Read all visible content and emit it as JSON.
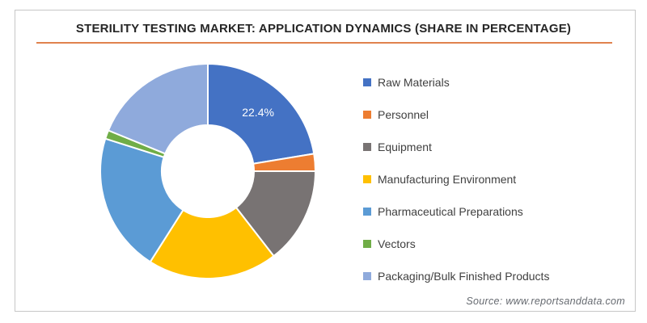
{
  "header": {
    "divider_color": "#e0824e",
    "frame_border_color": "#c7c7c7"
  },
  "footer": {
    "source": "Source: www.reportsanddata.com"
  },
  "chart_data": {
    "type": "pie",
    "subtype": "donut",
    "title": "STERILITY TESTING MARKET: APPLICATION DYNAMICS (SHARE IN PERCENTAGE)",
    "unit": "percent",
    "legend_position": "right",
    "direction": "clockwise",
    "start_angle_deg": 0,
    "inner_radius_ratio": 0.43,
    "data_label_color": "#ffffff",
    "series": [
      {
        "name": "Raw Materials",
        "value": 22.4,
        "color": "#4472c4",
        "data_label": "22.4%"
      },
      {
        "name": "Personnel",
        "value": 2.6,
        "color": "#ed7d31",
        "data_label": ""
      },
      {
        "name": "Equipment",
        "value": 14.5,
        "color": "#787373",
        "data_label": ""
      },
      {
        "name": "Manufacturing Environment",
        "value": 19.5,
        "color": "#ffc000",
        "data_label": ""
      },
      {
        "name": "Pharmaceutical Preparations",
        "value": 20.9,
        "color": "#5b9bd5",
        "data_label": ""
      },
      {
        "name": "Vectors",
        "value": 1.3,
        "color": "#70ad47",
        "data_label": ""
      },
      {
        "name": "Packaging/Bulk Finished Products",
        "value": 18.8,
        "color": "#8faadc",
        "data_label": ""
      }
    ]
  }
}
